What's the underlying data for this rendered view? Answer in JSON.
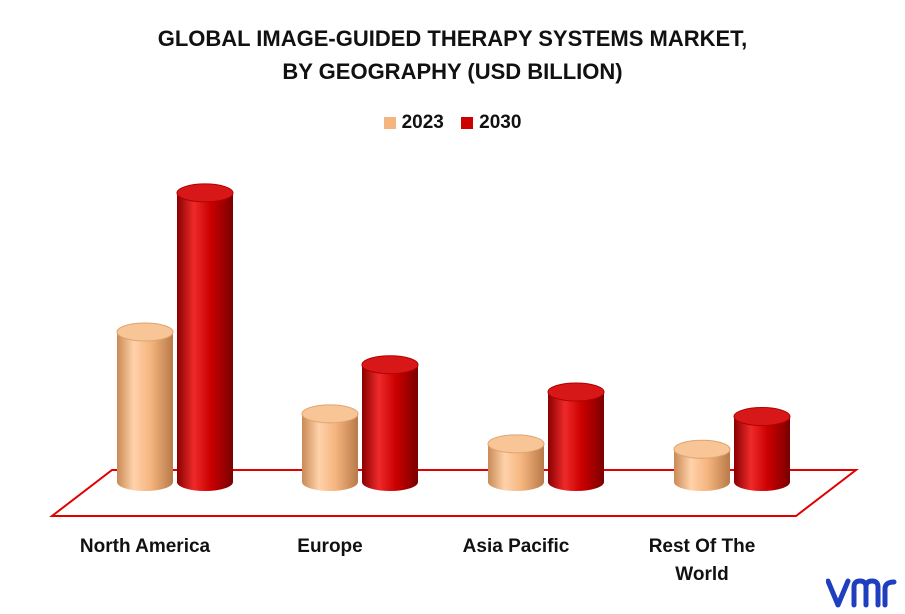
{
  "title_line1": "GLOBAL IMAGE-GUIDED THERAPY SYSTEMS MARKET,",
  "title_line2": "BY GEOGRAPHY (USD BILLION)",
  "logo_text": "vmr",
  "colors": {
    "s2023": "#f5b57f",
    "s2030": "#cc0000",
    "floor": "#e00000"
  },
  "chart_data": {
    "type": "bar",
    "title": "GLOBAL IMAGE-GUIDED THERAPY SYSTEMS MARKET, BY GEOGRAPHY (USD BILLION)",
    "categories": [
      "North America",
      "Europe",
      "Asia Pacific",
      "Rest Of The World"
    ],
    "series": [
      {
        "name": "2023",
        "values": [
          5.5,
          2.5,
          1.4,
          1.2
        ]
      },
      {
        "name": "2030",
        "values": [
          10.6,
          4.3,
          3.3,
          2.4
        ]
      }
    ],
    "ylim": [
      0,
      11
    ],
    "grid": false,
    "legend": "top-center"
  }
}
